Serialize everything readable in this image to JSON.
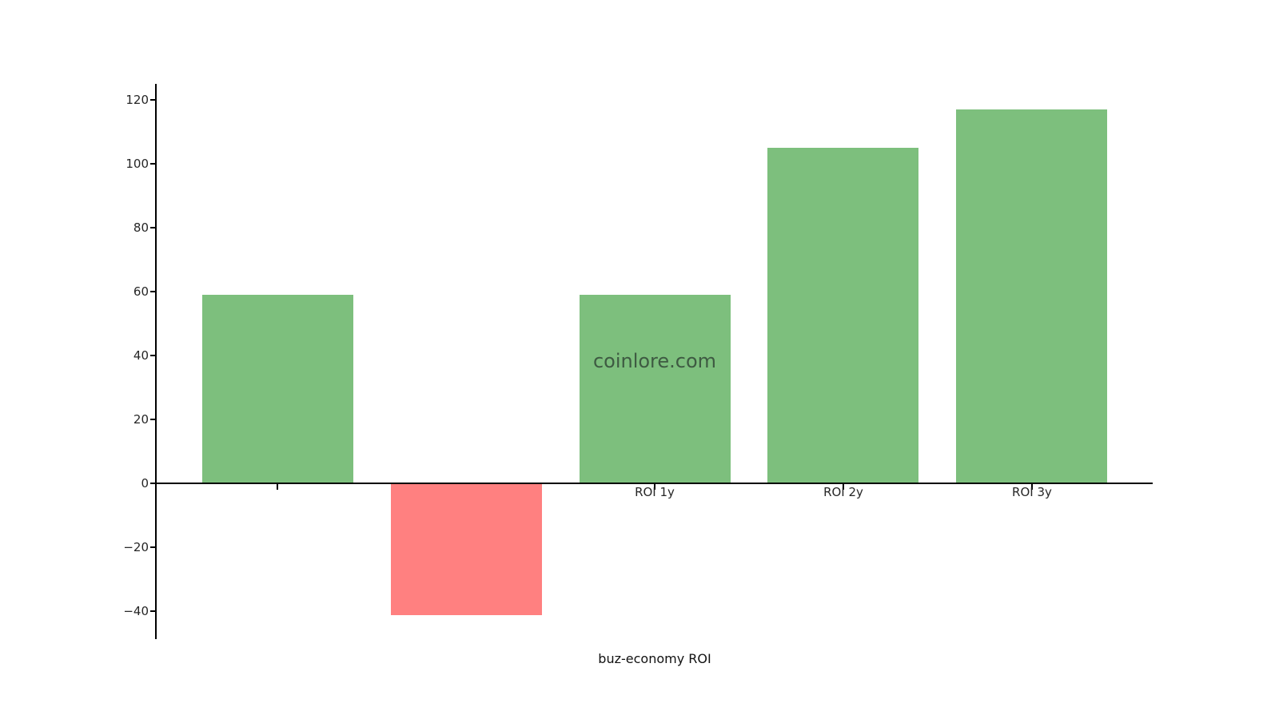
{
  "watermark": "coinlore.com",
  "chart_data": {
    "type": "bar",
    "title": "",
    "xlabel": "buz-economy ROI",
    "ylabel": "",
    "categories": [
      "",
      "",
      "ROI 1y",
      "ROI 2y",
      "ROI 3y"
    ],
    "values": [
      59,
      -41,
      59,
      105,
      117
    ],
    "yticks": [
      120,
      100,
      80,
      60,
      40,
      20,
      0,
      -20,
      -40
    ],
    "ylim": [
      -48.75,
      125
    ],
    "grid": false,
    "legend": "none",
    "colors": {
      "positive_bar": "#7dbf7d",
      "negative_bar": "#ff8080",
      "axis": "#000000",
      "tick_text": "#262626",
      "watermark_text": "#3e5a42"
    }
  }
}
